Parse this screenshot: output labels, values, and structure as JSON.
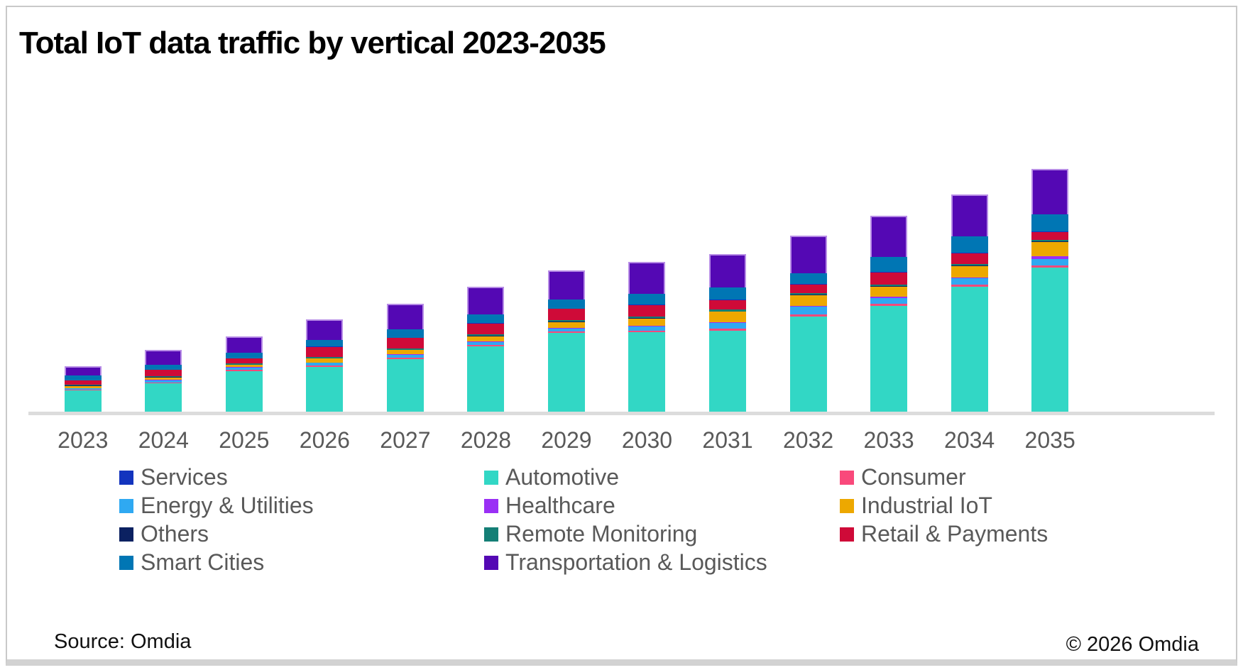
{
  "title": "Total IoT data traffic by vertical 2023-2035",
  "source_note": "Source: Omdia",
  "copyright_note": "© 2026 Omdia",
  "chart_data": {
    "type": "bar",
    "stacked": true,
    "title": "Total IoT data traffic by vertical 2023-2035",
    "xlabel": "",
    "ylabel": "",
    "value_units": "relative units (no value axis shown in chart; values estimated from bar heights, 1 unit = 1 px)",
    "grid": false,
    "legend_position": "bottom",
    "categories": [
      "2023",
      "2024",
      "2025",
      "2026",
      "2027",
      "2028",
      "2029",
      "2030",
      "2031",
      "2032",
      "2033",
      "2034",
      "2035"
    ],
    "stack_order_bottom_to_top": [
      "Automotive",
      "Consumer",
      "Energy & Utilities",
      "Healthcare",
      "Industrial IoT",
      "Others",
      "Remote Monitoring",
      "Retail & Payments",
      "Services",
      "Smart Cities",
      "Transportation & Logistics"
    ],
    "series": [
      {
        "name": "Automotive",
        "color": "#32d7c5",
        "values": [
          30,
          40,
          57.5,
          63.3,
          74,
          92,
          110.7,
          112,
          114,
          134.5,
          149,
          176,
          203
        ]
      },
      {
        "name": "Consumer",
        "color": "#f9497b",
        "values": [
          1.2,
          1.5,
          2,
          2,
          2,
          2,
          2,
          2.5,
          2.6,
          2.8,
          2.7,
          2.7,
          3
        ]
      },
      {
        "name": "Energy & Utilities",
        "color": "#2fa9f2",
        "values": [
          1.8,
          3,
          2.6,
          3.4,
          4,
          4,
          4.6,
          6,
          8.7,
          10.8,
          8.7,
          9.3,
          9.4
        ]
      },
      {
        "name": "Healthcare",
        "color": "#9a2ff5",
        "values": [
          0.5,
          0.6,
          0.6,
          0.7,
          0.8,
          0.8,
          0.9,
          1,
          1,
          1.2,
          1.3,
          1.4,
          3.3
        ]
      },
      {
        "name": "Industrial IoT",
        "color": "#eda800",
        "values": [
          2.8,
          3.3,
          3.4,
          5.3,
          6,
          7.3,
          8,
          10,
          14.3,
          14.8,
          14.6,
          15.3,
          20
        ]
      },
      {
        "name": "Others",
        "color": "#0b2161",
        "values": [
          0.4,
          0.4,
          0.4,
          0.5,
          0.5,
          0.6,
          0.6,
          0.7,
          0.8,
          0.9,
          0.9,
          1,
          1
        ]
      },
      {
        "name": "Remote Monitoring",
        "color": "#147f76",
        "values": [
          1.3,
          1.5,
          2,
          2,
          2,
          2,
          2,
          2.3,
          2.2,
          2.4,
          2,
          2,
          2.7
        ]
      },
      {
        "name": "Retail & Payments",
        "color": "#cf0a38",
        "values": [
          6,
          8.3,
          6.6,
          14,
          14.7,
          15.4,
          16,
          16,
          13.7,
          12,
          16.7,
          15.4,
          11
        ]
      },
      {
        "name": "Services",
        "color": "#1334be",
        "values": [
          0.4,
          0.4,
          0.4,
          0.5,
          0.5,
          0.6,
          0.6,
          0.7,
          0.8,
          0.9,
          0.9,
          1,
          1
        ]
      },
      {
        "name": "Smart Cities",
        "color": "#0076b4",
        "values": [
          6.3,
          7.5,
          8,
          9.3,
          11.3,
          12,
          12.7,
          14.5,
          16.7,
          14.5,
          21.5,
          23,
          24
        ]
      },
      {
        "name": "Transportation & Logistics",
        "color": "#5408b4",
        "values": [
          13,
          20.5,
          22.5,
          28.7,
          36.5,
          39.3,
          41.2,
          45,
          47.6,
          53.5,
          57.5,
          59,
          63.6
        ]
      }
    ]
  },
  "legend": {
    "items": [
      {
        "label": "Services",
        "color": "#1334be"
      },
      {
        "label": "Automotive",
        "color": "#32d7c5"
      },
      {
        "label": "Consumer",
        "color": "#f9497b"
      },
      {
        "label": "Energy & Utilities",
        "color": "#2fa9f2"
      },
      {
        "label": "Healthcare",
        "color": "#9a2ff5"
      },
      {
        "label": "Industrial IoT",
        "color": "#eda800"
      },
      {
        "label": "Others",
        "color": "#0b2161"
      },
      {
        "label": "Remote Monitoring",
        "color": "#147f76"
      },
      {
        "label": "Retail & Payments",
        "color": "#cf0a38"
      },
      {
        "label": "Smart Cities",
        "color": "#0076b4"
      },
      {
        "label": "Transportation & Logistics",
        "color": "#5408b4"
      }
    ]
  }
}
